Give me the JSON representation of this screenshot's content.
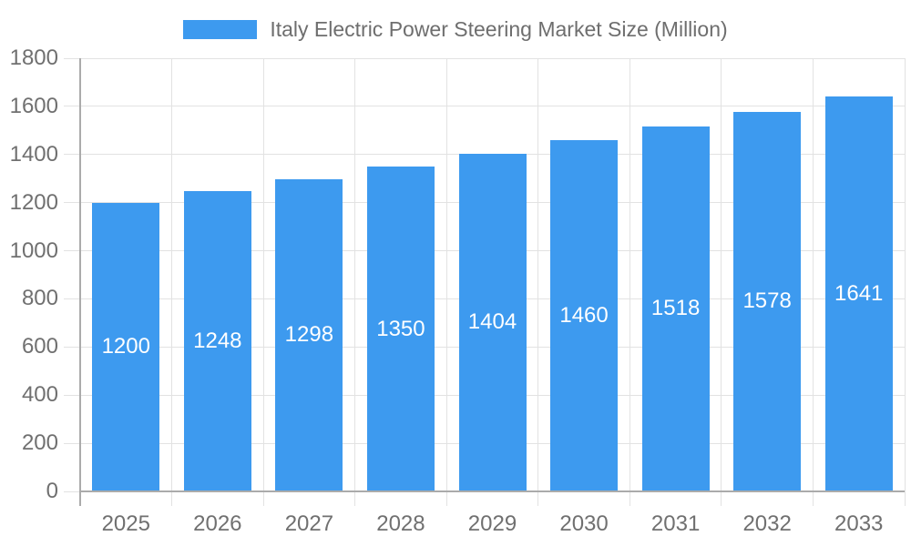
{
  "legend": {
    "label": "Italy Electric Power Steering Market Size (Million)"
  },
  "chart_data": {
    "type": "bar",
    "title": "Italy Electric Power Steering Market Size (Million)",
    "categories": [
      "2025",
      "2026",
      "2027",
      "2028",
      "2029",
      "2030",
      "2031",
      "2032",
      "2033"
    ],
    "values": [
      1200,
      1248,
      1298,
      1350,
      1404,
      1460,
      1518,
      1578,
      1641
    ],
    "xlabel": "",
    "ylabel": "",
    "ylim": [
      0,
      1800
    ],
    "yticks": [
      0,
      200,
      400,
      600,
      800,
      1000,
      1200,
      1400,
      1600,
      1800
    ],
    "grid": true,
    "legend_position": "top",
    "value_labels": "inside-center"
  },
  "colors": {
    "bar": "#3d9aef",
    "grid": "#e2e2e2",
    "axis_line": "#ababab",
    "axis_text": "#707070",
    "legend_text": "#6e6e6e",
    "value_label": "#ffffff",
    "background": "#ffffff"
  }
}
